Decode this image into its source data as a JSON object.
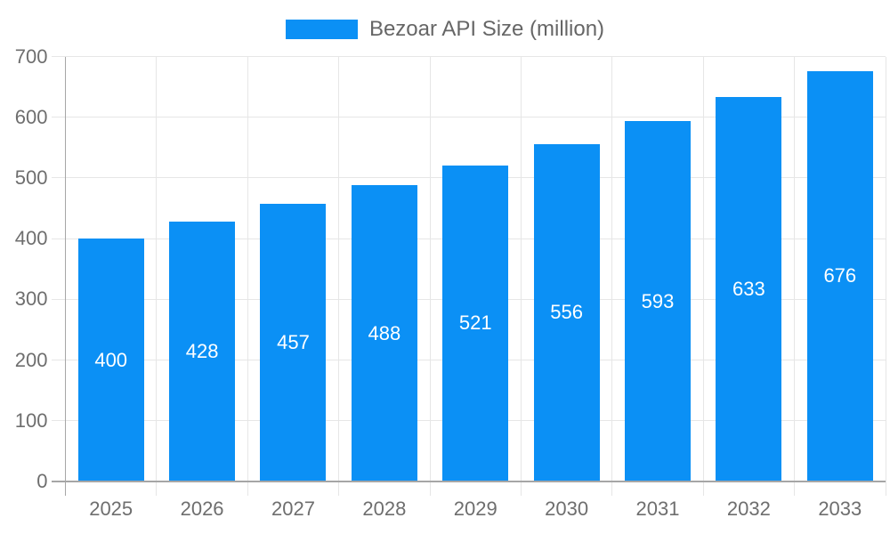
{
  "chart_data": {
    "type": "bar",
    "title": "Bezoar API Size (million)",
    "categories": [
      "2025",
      "2026",
      "2027",
      "2028",
      "2029",
      "2030",
      "2031",
      "2032",
      "2033"
    ],
    "values": [
      400,
      428,
      457,
      488,
      521,
      556,
      593,
      633,
      676
    ],
    "xlabel": "",
    "ylabel": "",
    "ylim": [
      0,
      700
    ],
    "ytick_step": 100,
    "grid": true,
    "legend_position": "top",
    "value_labels": "inside-center",
    "colors": {
      "bar": "#0b90f5",
      "grid": "#e6e6e6",
      "axis": "#a6a6a6",
      "tick_label": "#6e6e6e",
      "legend_text": "#666666",
      "value_label": "#ffffff",
      "background": "#ffffff"
    }
  }
}
